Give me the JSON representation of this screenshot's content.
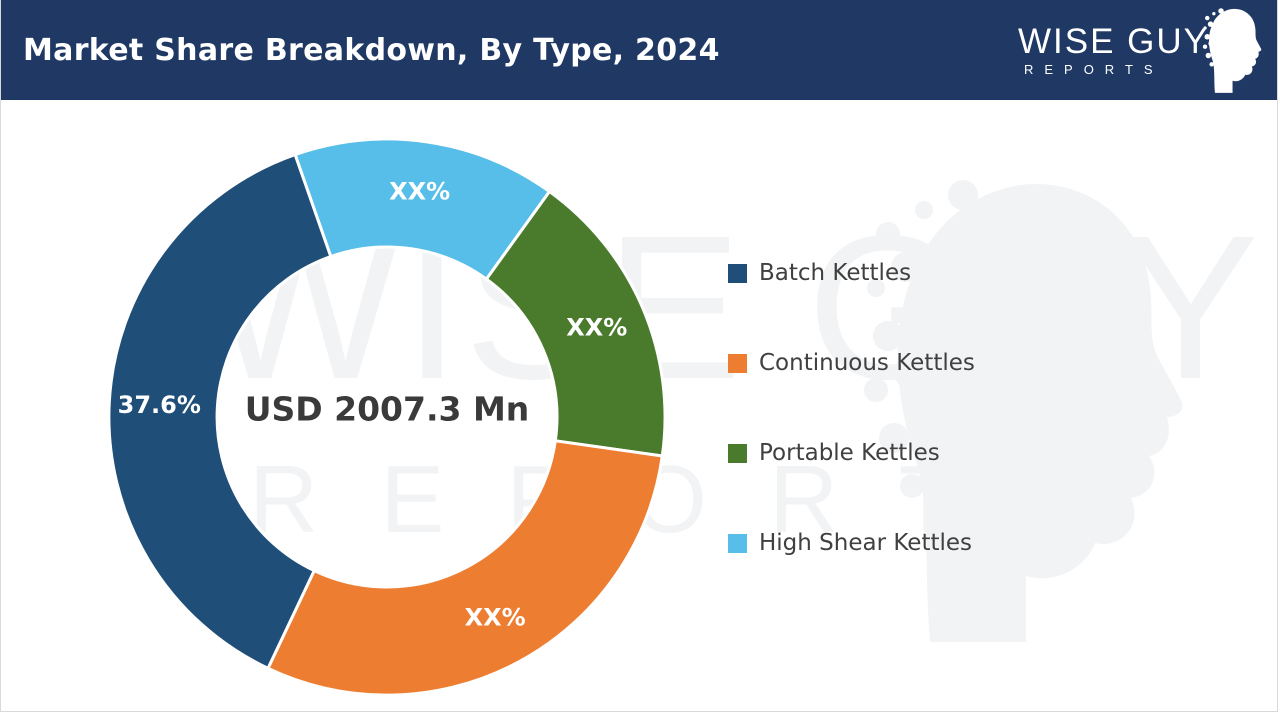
{
  "header": {
    "title": "Market Share Breakdown, By Type, 2024",
    "background_color": "#1F3864",
    "logo": {
      "line1": "WISE GUY",
      "line2": "REPORTS"
    }
  },
  "watermark": {
    "line1": "WISE GUY",
    "line2": "REPORTS"
  },
  "chart_data": {
    "type": "pie",
    "variant": "donut",
    "title": "Market Share Breakdown, By Type, 2024",
    "center_label": "USD 2007.3 Mn",
    "start_angle_deg": 109.3,
    "direction": "clockwise",
    "inner_radius_ratio": 0.61,
    "legend_position": "right",
    "gridlines": false,
    "segments": [
      {
        "name": "Batch Kettles",
        "label": "37.6%",
        "value_pct": 37.6,
        "color": "#1F4E79"
      },
      {
        "name": "Continuous Kettles",
        "label": "XX%",
        "value_pct": 29.8,
        "color": "#ED7D31"
      },
      {
        "name": "Portable Kettles",
        "label": "XX%",
        "value_pct": 17.3,
        "color": "#4A7B2C"
      },
      {
        "name": "High Shear Kettles",
        "label": "XX%",
        "value_pct": 15.3,
        "color": "#56BEE8"
      }
    ]
  }
}
